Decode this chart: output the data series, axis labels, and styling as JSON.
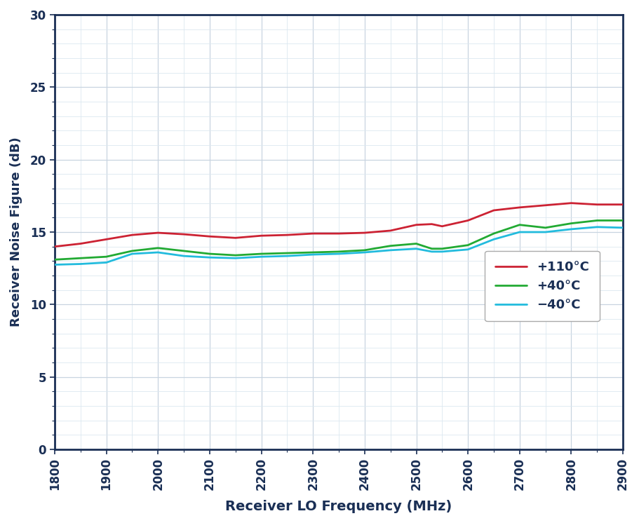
{
  "title": "",
  "xlabel": "Receiver LO Frequency (MHz)",
  "ylabel": "Receiver Noise Figure (dB)",
  "xlim": [
    1800,
    2900
  ],
  "ylim": [
    0,
    30
  ],
  "xticks": [
    1800,
    1900,
    2000,
    2100,
    2200,
    2300,
    2400,
    2500,
    2600,
    2700,
    2800,
    2900
  ],
  "yticks": [
    0,
    5,
    10,
    15,
    20,
    25,
    30
  ],
  "background_color": "#ffffff",
  "plot_background": "#ffffff",
  "major_grid_color": "#c8d4e0",
  "minor_grid_color": "#dce8f0",
  "series": [
    {
      "label": "+110°C",
      "color": "#cc2233",
      "x": [
        1800,
        1850,
        1900,
        1950,
        2000,
        2050,
        2100,
        2150,
        2200,
        2250,
        2300,
        2350,
        2400,
        2450,
        2500,
        2530,
        2550,
        2600,
        2650,
        2700,
        2750,
        2800,
        2850,
        2900
      ],
      "y": [
        14.0,
        14.2,
        14.5,
        14.8,
        14.95,
        14.85,
        14.7,
        14.6,
        14.75,
        14.8,
        14.9,
        14.9,
        14.95,
        15.1,
        15.5,
        15.55,
        15.4,
        15.8,
        16.5,
        16.7,
        16.85,
        17.0,
        16.9,
        16.9
      ]
    },
    {
      "label": "+40°C",
      "color": "#22aa33",
      "x": [
        1800,
        1850,
        1900,
        1950,
        2000,
        2050,
        2100,
        2150,
        2200,
        2250,
        2300,
        2350,
        2400,
        2450,
        2500,
        2530,
        2550,
        2600,
        2650,
        2700,
        2750,
        2800,
        2850,
        2900
      ],
      "y": [
        13.1,
        13.2,
        13.3,
        13.7,
        13.9,
        13.7,
        13.5,
        13.4,
        13.5,
        13.55,
        13.6,
        13.65,
        13.75,
        14.05,
        14.2,
        13.85,
        13.85,
        14.1,
        14.9,
        15.5,
        15.3,
        15.6,
        15.8,
        15.8
      ]
    },
    {
      "label": "−40°C",
      "color": "#22bbdd",
      "x": [
        1800,
        1850,
        1900,
        1950,
        2000,
        2050,
        2100,
        2150,
        2200,
        2250,
        2300,
        2350,
        2400,
        2450,
        2500,
        2530,
        2550,
        2600,
        2650,
        2700,
        2750,
        2800,
        2850,
        2900
      ],
      "y": [
        12.75,
        12.8,
        12.9,
        13.5,
        13.6,
        13.35,
        13.25,
        13.2,
        13.3,
        13.35,
        13.45,
        13.5,
        13.6,
        13.75,
        13.85,
        13.65,
        13.65,
        13.8,
        14.5,
        15.0,
        15.0,
        15.2,
        15.35,
        15.3
      ]
    }
  ],
  "line_width": 2.0,
  "xlabel_fontsize": 14,
  "ylabel_fontsize": 13,
  "tick_fontsize": 12,
  "legend_fontsize": 13,
  "axis_color": "#1a2f55",
  "tick_color": "#1a2f55"
}
